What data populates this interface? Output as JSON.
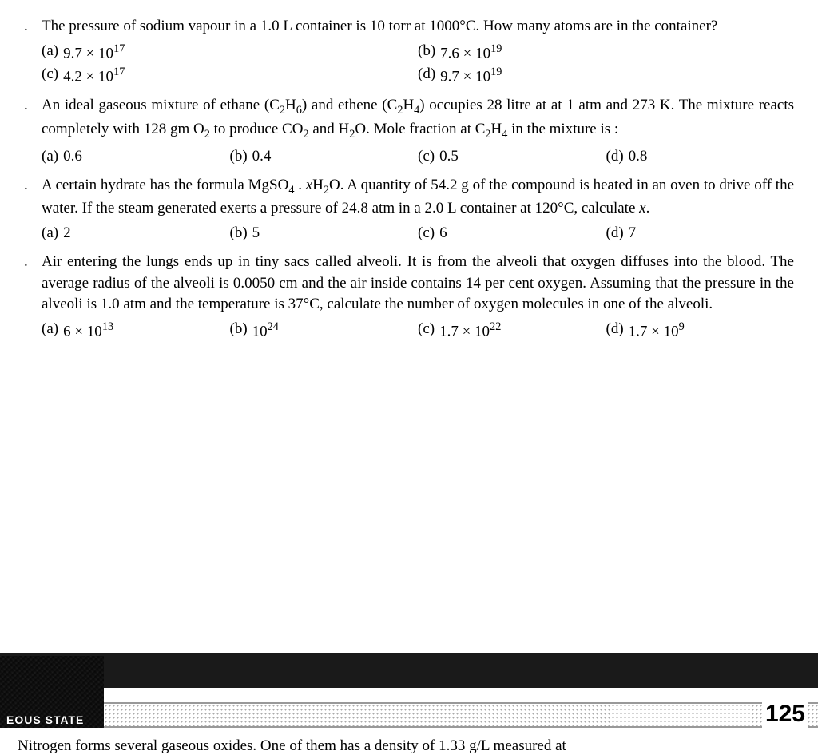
{
  "questions": [
    {
      "bullet": ".",
      "text_html": "The pressure of sodium vapour in a 1.0 L container is 10 torr at 1000°C. How many atoms are in the container?",
      "options_layout": "two-col",
      "options": [
        {
          "label": "(a)",
          "value_html": "9.7 × 10<sup>17</sup>"
        },
        {
          "label": "(b)",
          "value_html": "7.6 × 10<sup>19</sup>"
        },
        {
          "label": "(c)",
          "value_html": "4.2 × 10<sup>17</sup>"
        },
        {
          "label": "(d)",
          "value_html": "9.7 × 10<sup>19</sup>"
        }
      ]
    },
    {
      "bullet": ".",
      "text_html": "An ideal gaseous mixture of ethane (C<sub>2</sub>H<sub>6</sub>) and ethene (C<sub>2</sub>H<sub>4</sub>) occupies 28 litre at at 1 atm and 273 K. The mixture reacts completely with 128 gm O<sub>2</sub> to produce CO<sub>2</sub> and H<sub>2</sub>O. Mole fraction at C<sub>2</sub>H<sub>4</sub> in the mixture is :",
      "options_layout": "four-col",
      "options": [
        {
          "label": "(a)",
          "value_html": "0.6"
        },
        {
          "label": "(b)",
          "value_html": "0.4"
        },
        {
          "label": "(c)",
          "value_html": "0.5"
        },
        {
          "label": "(d)",
          "value_html": "0.8"
        }
      ]
    },
    {
      "bullet": ".",
      "text_html": "A certain hydrate has the formula MgSO<sub>4</sub> . <i>x</i>H<sub>2</sub>O. A quantity of 54.2 g of the compound is heated in an oven to drive off the water. If the steam generated exerts a pressure of 24.8 atm in a 2.0 L container at 120°C, calculate <i>x</i>.",
      "options_layout": "four-col",
      "options": [
        {
          "label": "(a)",
          "value_html": "2"
        },
        {
          "label": "(b)",
          "value_html": "5"
        },
        {
          "label": "(c)",
          "value_html": "6"
        },
        {
          "label": "(d)",
          "value_html": "7"
        }
      ]
    },
    {
      "bullet": ".",
      "text_html": "Air entering the lungs ends up in tiny sacs called alveoli. It is from the alveoli that oxygen diffuses into the blood. The average radius of the alveoli is 0.0050 cm and the air inside contains 14 per cent oxygen. Assuming that the pressure in the alveoli is 1.0 atm and the temperature is 37°C, calculate the number of oxygen molecules in one of the alveoli.",
      "options_layout": "four-col",
      "options": [
        {
          "label": "(a)",
          "value_html": "6 × 10<sup>13</sup>"
        },
        {
          "label": "(b)",
          "value_html": "10<sup>24</sup>"
        },
        {
          "label": "(c)",
          "value_html": "1.7 × 10<sup>22</sup>"
        },
        {
          "label": "(d)",
          "value_html": "1.7 × 10<sup>9</sup>"
        }
      ]
    }
  ],
  "footer": {
    "state_label": "EOUS STATE",
    "page_number": "125",
    "bottom_cut_text": "Nitrogen forms several gaseous oxides. One of them has a density of 1.33 g/L measured at"
  }
}
